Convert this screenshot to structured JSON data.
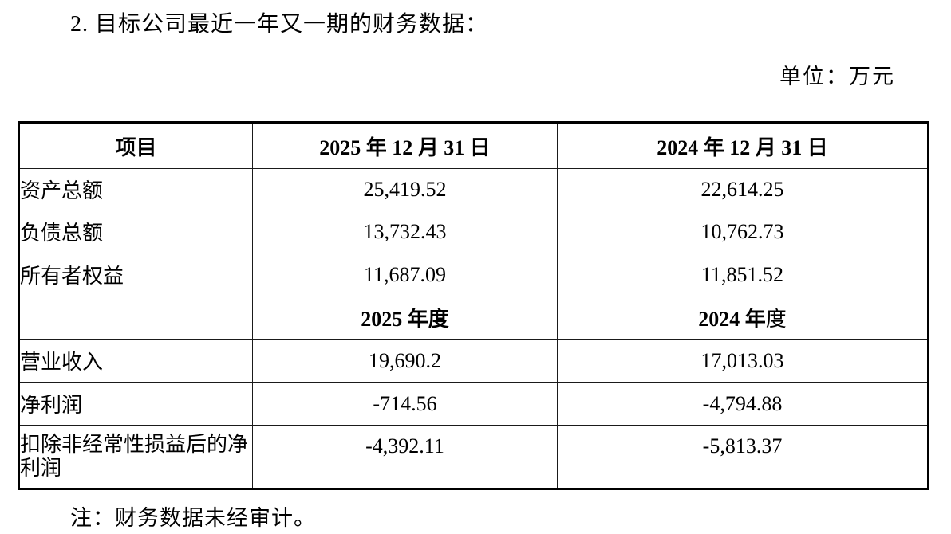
{
  "page": {
    "title": "2. 目标公司最近一年又一期的财务数据：",
    "unit_label": "单位：万元",
    "note": "注：财务数据未经审计。"
  },
  "table": {
    "header": {
      "item": "项目",
      "date_2025": "2025 年 12 月 31 日",
      "date_2024": "2024 年 12 月 31 日"
    },
    "balance_rows": [
      {
        "item": "资产总额",
        "v2025": "25,419.52",
        "v2024": "22,614.25"
      },
      {
        "item": "负债总额",
        "v2025": "13,732.43",
        "v2024": "10,762.73"
      },
      {
        "item": "所有者权益",
        "v2025": "11,687.09",
        "v2024": "11,851.52"
      }
    ],
    "period_header": {
      "item": "",
      "p2025_bold": "2025 年度",
      "p2025_regular": "",
      "p2024_bold": "2024 年",
      "p2024_regular": "度"
    },
    "income_rows": [
      {
        "item": "营业收入",
        "v2025": "19,690.2",
        "v2024": "17,013.03"
      },
      {
        "item": "净利润",
        "v2025": "-714.56",
        "v2024": "-4,794.88"
      },
      {
        "item": "扣除非经常性损益后的净利润",
        "v2025": "-4,392.11",
        "v2024": "-5,813.37"
      }
    ]
  }
}
